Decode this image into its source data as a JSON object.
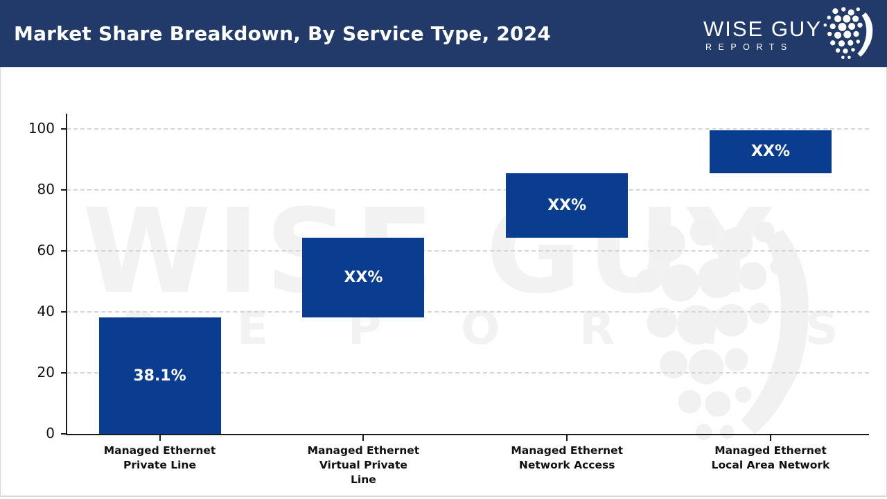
{
  "header": {
    "title": "Market Share Breakdown, By Service Type, 2024",
    "bg_color": "#213a69",
    "logo": {
      "line1": "WISE GUY",
      "line2": "REPORTS"
    }
  },
  "watermark": {
    "line1": "WISE GUY",
    "line2": "R E P O R T S"
  },
  "chart_data": {
    "type": "bar",
    "subtype": "waterfall",
    "title": "Market Share Breakdown, By Service Type, 2024",
    "categories": [
      [
        "Managed Ethernet",
        "Private Line"
      ],
      [
        "Managed Ethernet",
        "Virtual Private",
        "Line"
      ],
      [
        "Managed Ethernet",
        "Network Access"
      ],
      [
        "Managed Ethernet",
        "Local Area Network"
      ]
    ],
    "segments": [
      {
        "start": 0,
        "end": 38.1,
        "value": 38.1,
        "label": "38.1%"
      },
      {
        "start": 38.1,
        "end": 64.4,
        "value": 26.3,
        "label": "XX%"
      },
      {
        "start": 64.4,
        "end": 85.5,
        "value": 21.1,
        "label": "XX%"
      },
      {
        "start": 85.5,
        "end": 99.6,
        "value": 14.1,
        "label": "XX%"
      }
    ],
    "yticks": [
      0,
      20,
      40,
      60,
      80,
      100
    ],
    "ylim": [
      0,
      100
    ],
    "xlabel": "",
    "ylabel": "",
    "grid": "horizontal-dashed",
    "legend": "none",
    "bar_color": "#0a3d8f",
    "bar_label_color": "#ffffff",
    "axis_color": "#1a1a1a"
  }
}
